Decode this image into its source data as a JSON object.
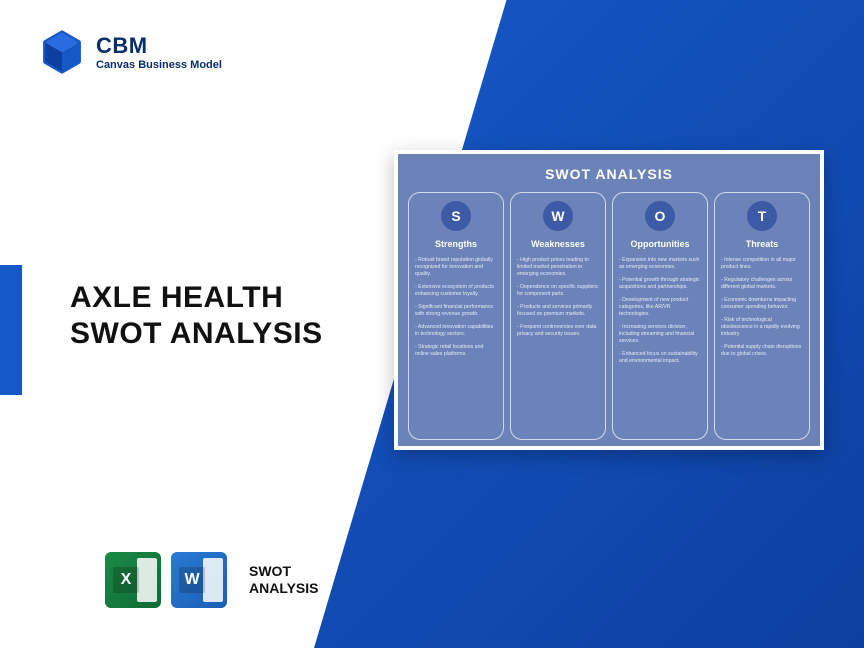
{
  "logo": {
    "title": "CBM",
    "subtitle": "Canvas Business Model"
  },
  "title_line1": "AXLE HEALTH",
  "title_line2": "SWOT ANALYSIS",
  "footer": {
    "excel_letter": "X",
    "word_letter": "W",
    "label_line1": "SWOT",
    "label_line2": "ANALYSIS"
  },
  "swot": {
    "heading": "SWOT ANALYSIS",
    "columns": [
      {
        "letter": "S",
        "name": "Strengths",
        "items": [
          "Robust brand reputation globally recognized for innovation and quality.",
          "Extensive ecosystem of products enhancing customer loyalty.",
          "Significant financial performance with strong revenue growth.",
          "Advanced innovation capabilities in technology sectors.",
          "Strategic retail locations and online sales platforms."
        ]
      },
      {
        "letter": "W",
        "name": "Weaknesses",
        "items": [
          "High product prices leading to limited market penetration in emerging economies.",
          "Dependence on specific suppliers for component parts.",
          "Products and services primarily focused on premium markets.",
          "Frequent controversies over data privacy and security issues."
        ]
      },
      {
        "letter": "O",
        "name": "Opportunities",
        "items": [
          "Expansion into new markets such as emerging economies.",
          "Potential growth through strategic acquisitions and partnerships.",
          "Development of new product categories, like AR/VR technologies.",
          "Increasing services division, including streaming and financial services.",
          "Enhanced focus on sustainability and environmental impact."
        ]
      },
      {
        "letter": "T",
        "name": "Threats",
        "items": [
          "Intense competition in all major product lines.",
          "Regulatory challenges across different global markets.",
          "Economic downturns impacting consumer spending behavior.",
          "Risk of technological obsolescence in a rapidly evolving industry.",
          "Potential supply chain disruptions due to global crises."
        ]
      }
    ]
  },
  "colors": {
    "brand_blue": "#1559c7",
    "dark_blue": "#0a2d6b",
    "card_bg": "#6b83b8",
    "circle_bg": "#3c5aa6"
  }
}
